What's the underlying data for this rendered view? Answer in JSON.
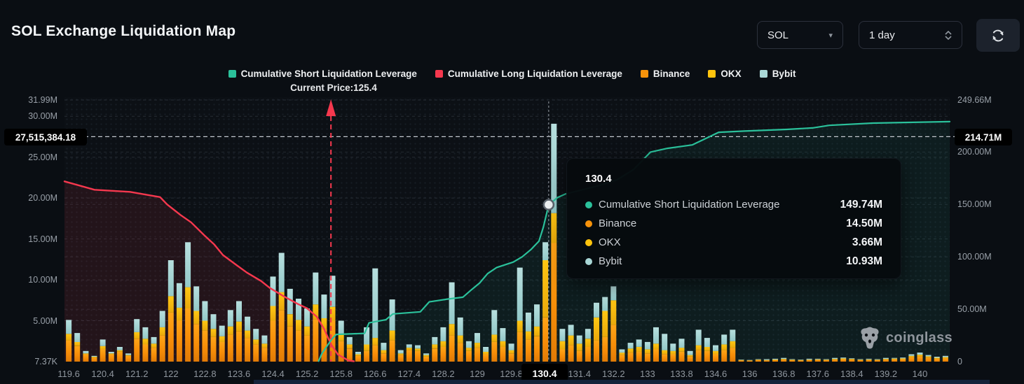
{
  "header": {
    "title": "SOL Exchange Liquidation Map"
  },
  "controls": {
    "symbol": "SOL",
    "interval": "1 day"
  },
  "legend": [
    {
      "label": "Cumulative Short Liquidation Leverage",
      "color": "#2bc19b"
    },
    {
      "label": "Cumulative Long Liquidation Leverage",
      "color": "#f5384e"
    },
    {
      "label": "Binance",
      "color": "#f7930a"
    },
    {
      "label": "OKX",
      "color": "#ffc40d"
    },
    {
      "label": "Bybit",
      "color": "#a9d7d6"
    }
  ],
  "annotations": {
    "current_price_label": "Current Price:125.4",
    "left_highlight": "27,515,384.18",
    "right_highlight": "214.71M",
    "x_highlight": "130.4"
  },
  "tooltip": {
    "title": "130.4",
    "rows": [
      {
        "label": "Cumulative Short Liquidation Leverage",
        "value": "149.74M",
        "color": "#2bc19b"
      },
      {
        "label": "Binance",
        "value": "14.50M",
        "color": "#f7930a"
      },
      {
        "label": "OKX",
        "value": "3.66M",
        "color": "#ffc40d"
      },
      {
        "label": "Bybit",
        "value": "10.93M",
        "color": "#a9d7d6"
      }
    ]
  },
  "watermark": {
    "text": "coinglass"
  },
  "chart_data": {
    "type": "bar+line",
    "title": "SOL Exchange Liquidation Map",
    "units": "USD, millions (M)",
    "x_labels": [
      "119.6",
      "120.4",
      "121.2",
      "122",
      "122.8",
      "123.6",
      "124.4",
      "125.2",
      "125.8",
      "126.6",
      "127.4",
      "128.2",
      "129",
      "129.8",
      "130.6",
      "131.4",
      "132.2",
      "133",
      "133.8",
      "134.6",
      "136",
      "136.8",
      "137.6",
      "138.4",
      "139.2",
      "140"
    ],
    "x_highlight_label": "130.4",
    "left_axis": {
      "ticks": [
        [
          "31.99M",
          31.99
        ],
        [
          "30.00M",
          30
        ],
        [
          "25.00M",
          25
        ],
        [
          "20.00M",
          20
        ],
        [
          "15.00M",
          15
        ],
        [
          "10.00M",
          10
        ],
        [
          "5.00M",
          5
        ],
        [
          "7.37K",
          0.00737
        ]
      ],
      "max": 31.99
    },
    "right_axis": {
      "ticks": [
        [
          "249.66M",
          249.66
        ],
        [
          "200.00M",
          200
        ],
        [
          "150.00M",
          150
        ],
        [
          "100.00M",
          100
        ],
        [
          "50.00M",
          50
        ],
        [
          "0",
          0
        ]
      ],
      "max": 249.66
    },
    "highlight_level": {
      "left_value": 27515384.18,
      "right_value_m": 214.71
    },
    "bar_series_names": [
      "Binance",
      "OKX",
      "Bybit"
    ],
    "bars": [
      [
        2.6,
        0.8,
        1.7
      ],
      [
        1.9,
        0.5,
        1.1
      ],
      [
        0.9,
        0.1,
        0.3
      ],
      [
        0.5,
        0.1,
        0.1
      ],
      [
        1.5,
        0.4,
        0.8
      ],
      [
        0.9,
        0.1,
        0.2
      ],
      [
        1.2,
        0.2,
        0.4
      ],
      [
        0.7,
        0.1,
        0.2
      ],
      [
        2.8,
        0.8,
        1.6
      ],
      [
        2.1,
        0.7,
        1.4
      ],
      [
        1.7,
        0.5,
        0.8
      ],
      [
        3.2,
        1.0,
        2.0
      ],
      [
        6.0,
        2.0,
        4.4
      ],
      [
        5.0,
        1.6,
        3.0
      ],
      [
        6.5,
        2.6,
        5.5
      ],
      [
        4.6,
        1.6,
        3.0
      ],
      [
        3.8,
        1.2,
        2.4
      ],
      [
        3.0,
        1.0,
        1.8
      ],
      [
        2.4,
        0.7,
        1.3
      ],
      [
        3.3,
        1.0,
        2.0
      ],
      [
        3.7,
        1.2,
        2.5
      ],
      [
        2.9,
        0.9,
        1.7
      ],
      [
        2.1,
        0.6,
        1.3
      ],
      [
        1.7,
        0.5,
        1.0
      ],
      [
        5.0,
        1.8,
        3.6
      ],
      [
        6.3,
        2.2,
        4.8
      ],
      [
        4.3,
        1.5,
        3.1
      ],
      [
        3.8,
        1.3,
        2.6
      ],
      [
        3.2,
        1.1,
        2.2
      ],
      [
        5.2,
        1.8,
        3.9
      ],
      [
        4.0,
        1.3,
        2.9
      ],
      [
        5.0,
        1.7,
        3.8
      ],
      [
        2.5,
        0.8,
        1.7
      ],
      [
        1.6,
        0.5,
        0.9
      ],
      [
        0.7,
        0.2,
        0.3
      ],
      [
        1.3,
        0.8,
        2.1
      ],
      [
        2.0,
        0.9,
        8.5
      ],
      [
        1.0,
        0.4,
        0.9
      ],
      [
        2.6,
        1.2,
        3.8
      ],
      [
        0.8,
        0.2,
        0.4
      ],
      [
        1.4,
        0.3,
        0.4
      ],
      [
        1.3,
        0.3,
        0.4
      ],
      [
        0.6,
        0.2,
        0.2
      ],
      [
        1.6,
        0.5,
        0.9
      ],
      [
        1.8,
        0.7,
        1.7
      ],
      [
        3.2,
        1.4,
        5.1
      ],
      [
        2.3,
        0.9,
        2.2
      ],
      [
        1.3,
        0.4,
        0.8
      ],
      [
        1.7,
        0.6,
        1.2
      ],
      [
        0.9,
        0.3,
        0.6
      ],
      [
        2.4,
        0.9,
        3.0
      ],
      [
        1.8,
        0.7,
        1.6
      ],
      [
        1.0,
        0.4,
        0.8
      ],
      [
        3.6,
        1.4,
        6.5
      ],
      [
        2.7,
        1.0,
        2.3
      ],
      [
        3.1,
        1.2,
        2.7
      ],
      [
        5.4,
        7.0,
        2.2
      ],
      [
        14.5,
        3.66,
        10.93
      ],
      [
        1.5,
        1.0,
        1.5
      ],
      [
        2.0,
        1.2,
        1.3
      ],
      [
        1.3,
        0.9,
        1.0
      ],
      [
        1.8,
        1.0,
        1.2
      ],
      [
        2.6,
        2.8,
        1.8
      ],
      [
        3.0,
        3.2,
        1.7
      ],
      [
        4.5,
        3.0,
        1.7
      ],
      [
        0.8,
        0.3,
        0.4
      ],
      [
        1.1,
        0.5,
        0.7
      ],
      [
        1.2,
        0.6,
        0.9
      ],
      [
        1.0,
        0.5,
        0.9
      ],
      [
        1.5,
        0.7,
        2.0
      ],
      [
        0.9,
        0.5,
        2.0
      ],
      [
        0.9,
        0.4,
        0.9
      ],
      [
        1.2,
        0.5,
        1.1
      ],
      [
        0.6,
        0.2,
        0.5
      ],
      [
        1.4,
        0.6,
        1.9
      ],
      [
        1.3,
        0.5,
        1.1
      ],
      [
        0.9,
        0.4,
        0.7
      ],
      [
        1.4,
        0.7,
        1.2
      ],
      [
        1.7,
        0.8,
        1.4
      ],
      [
        0.15,
        0.05,
        0.05
      ],
      [
        0.12,
        0.04,
        0.04
      ],
      [
        0.2,
        0.05,
        0.05
      ],
      [
        0.15,
        0.05,
        0.1
      ],
      [
        0.2,
        0.06,
        0.09
      ],
      [
        0.25,
        0.08,
        0.12
      ],
      [
        0.18,
        0.06,
        0.06
      ],
      [
        0.15,
        0.05,
        0.05
      ],
      [
        0.2,
        0.05,
        0.1
      ],
      [
        0.22,
        0.06,
        0.07
      ],
      [
        0.18,
        0.06,
        0.06
      ],
      [
        0.25,
        0.08,
        0.12
      ],
      [
        0.3,
        0.1,
        0.1
      ],
      [
        0.25,
        0.08,
        0.07
      ],
      [
        0.18,
        0.06,
        0.06
      ],
      [
        0.2,
        0.07,
        0.08
      ],
      [
        0.18,
        0.06,
        0.06
      ],
      [
        0.25,
        0.08,
        0.12
      ],
      [
        0.28,
        0.09,
        0.08
      ],
      [
        0.3,
        0.1,
        0.1
      ],
      [
        0.55,
        0.15,
        0.2
      ],
      [
        0.65,
        0.2,
        0.25
      ],
      [
        0.5,
        0.15,
        0.15
      ],
      [
        0.35,
        0.12,
        0.13
      ],
      [
        0.4,
        0.15,
        0.15
      ]
    ],
    "short_line": {
      "name": "Cumulative Short Liquidation Leverage",
      "color": "#2bc19b",
      "points": [
        [
          0.287,
          0.5
        ],
        [
          0.291,
          8
        ],
        [
          0.302,
          21.4
        ],
        [
          0.307,
          26
        ],
        [
          0.339,
          27
        ],
        [
          0.344,
          37
        ],
        [
          0.363,
          40
        ],
        [
          0.371,
          45.5
        ],
        [
          0.402,
          47.5
        ],
        [
          0.412,
          57
        ],
        [
          0.431,
          59.5
        ],
        [
          0.45,
          61.5
        ],
        [
          0.459,
          68
        ],
        [
          0.469,
          75
        ],
        [
          0.478,
          84
        ],
        [
          0.488,
          89.7
        ],
        [
          0.507,
          95
        ],
        [
          0.517,
          100
        ],
        [
          0.527,
          107
        ],
        [
          0.536,
          115
        ],
        [
          0.541,
          128.5
        ],
        [
          0.547,
          149.74
        ],
        [
          0.557,
          156.6
        ],
        [
          0.566,
          160
        ],
        [
          0.585,
          164
        ],
        [
          0.604,
          168
        ],
        [
          0.624,
          173.4
        ],
        [
          0.643,
          183.4
        ],
        [
          0.662,
          200
        ],
        [
          0.681,
          203.5
        ],
        [
          0.709,
          206.8
        ],
        [
          0.729,
          214.8
        ],
        [
          0.739,
          218.9
        ],
        [
          0.768,
          220
        ],
        [
          0.816,
          221.6
        ],
        [
          0.845,
          223
        ],
        [
          0.864,
          225.5
        ],
        [
          0.913,
          227.6
        ],
        [
          1.0,
          229
        ]
      ]
    },
    "long_line": {
      "name": "Cumulative Long Liquidation Leverage",
      "color": "#f5384e",
      "points": [
        [
          0.0,
          172
        ],
        [
          0.034,
          164
        ],
        [
          0.074,
          162
        ],
        [
          0.108,
          157
        ],
        [
          0.116,
          150
        ],
        [
          0.131,
          140
        ],
        [
          0.143,
          133
        ],
        [
          0.158,
          120.5
        ],
        [
          0.169,
          112
        ],
        [
          0.179,
          101.7
        ],
        [
          0.195,
          91.7
        ],
        [
          0.206,
          85
        ],
        [
          0.222,
          77
        ],
        [
          0.232,
          70.3
        ],
        [
          0.248,
          62.2
        ],
        [
          0.264,
          54.9
        ],
        [
          0.274,
          50.9
        ],
        [
          0.285,
          42.8
        ],
        [
          0.293,
          31.5
        ],
        [
          0.301,
          16.7
        ],
        [
          0.309,
          6.7
        ],
        [
          0.321,
          1.0
        ],
        [
          0.327,
          0.4
        ]
      ]
    },
    "marker": {
      "frac": 0.547,
      "value_m": 149.74
    },
    "current_price": {
      "frac": 0.301,
      "price": 125.4
    },
    "crosshair": {
      "frac": 0.547
    },
    "grid": "dashed-horizontal",
    "legend_position": "top-center"
  }
}
